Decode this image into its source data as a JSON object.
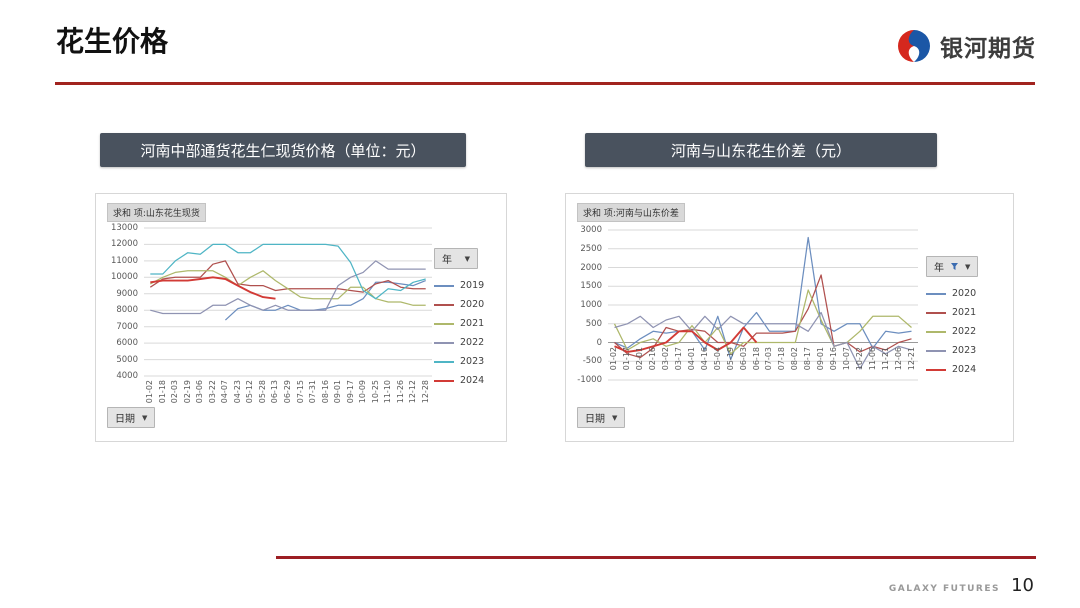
{
  "slide": {
    "title": "花生价格",
    "logo_text": "银河期货",
    "footer_brand": "GALAXY FUTURES",
    "page_number": "10",
    "accent_red": "#a1231e",
    "header_bg": "#49525e"
  },
  "icons": {
    "dropdown_arrow": "▼"
  },
  "panels": [
    {
      "header": "河南中部通货花生仁现货价格（单位：元）",
      "pivot_field": "求和 项:山东花生现货",
      "axis_filter_label": "日期",
      "legend_filter_label": "年",
      "legend_filtered": false
    },
    {
      "header": "河南与山东花生价差（元）",
      "pivot_field": "求和 项:河南与山东价差",
      "axis_filter_label": "日期",
      "legend_filter_label": "年",
      "legend_filtered": true
    }
  ],
  "chart_data": [
    {
      "type": "line",
      "title": "河南中部通货花生仁现货价格（单位：元）",
      "xlabel": "日期",
      "ylabel": "",
      "ylim": [
        4000,
        13000
      ],
      "yticks": [
        13000,
        12000,
        11000,
        10000,
        9000,
        8000,
        7000,
        6000,
        5000,
        4000
      ],
      "grid": true,
      "legend_position": "right",
      "categories": [
        "01-02",
        "01-18",
        "02-03",
        "02-19",
        "03-06",
        "03-22",
        "04-07",
        "04-23",
        "05-12",
        "05-28",
        "06-13",
        "06-29",
        "07-15",
        "07-31",
        "08-16",
        "09-01",
        "09-17",
        "10-09",
        "10-25",
        "11-10",
        "11-26",
        "12-12",
        "12-28"
      ],
      "series": [
        {
          "name": "2019",
          "color": "#6c8ebf",
          "values": [
            null,
            null,
            null,
            null,
            null,
            null,
            7400,
            8100,
            8300,
            8000,
            8000,
            8300,
            8000,
            8000,
            8100,
            8300,
            8300,
            8700,
            9700,
            9700,
            9600,
            9500,
            9800
          ]
        },
        {
          "name": "2020",
          "color": "#b0504e",
          "values": [
            9400,
            9900,
            10000,
            10000,
            10000,
            10800,
            11000,
            9600,
            9500,
            9500,
            9200,
            9300,
            9300,
            9300,
            9300,
            9300,
            9200,
            9100,
            9600,
            9800,
            9400,
            9300,
            9300
          ]
        },
        {
          "name": "2021",
          "color": "#aeb86b",
          "values": [
            9600,
            10000,
            10300,
            10400,
            10400,
            10400,
            10000,
            9500,
            10000,
            10400,
            9800,
            9300,
            8800,
            8700,
            8700,
            8700,
            9400,
            9400,
            8700,
            8500,
            8500,
            8300,
            8300
          ]
        },
        {
          "name": "2022",
          "color": "#8f93b2",
          "values": [
            8000,
            7800,
            7800,
            7800,
            7800,
            8300,
            8300,
            8700,
            8300,
            8000,
            8300,
            8000,
            8000,
            8000,
            8000,
            9500,
            10000,
            10300,
            11000,
            10500,
            10500,
            10500,
            10500
          ]
        },
        {
          "name": "2023",
          "color": "#4fb5c5",
          "values": [
            10200,
            10200,
            11000,
            11500,
            11400,
            12000,
            12000,
            11500,
            11500,
            12000,
            12000,
            12000,
            12000,
            12000,
            12000,
            11900,
            10900,
            9200,
            8700,
            9300,
            9200,
            9700,
            9900
          ]
        },
        {
          "name": "2024",
          "color": "#d23b36",
          "values": [
            9700,
            9800,
            9800,
            9800,
            9900,
            10000,
            9900,
            9500,
            9100,
            8800,
            8700,
            null,
            null,
            null,
            null,
            null,
            null,
            null,
            null,
            null,
            null,
            null,
            null
          ]
        }
      ]
    },
    {
      "type": "line",
      "title": "河南与山东花生价差（元）",
      "xlabel": "日期",
      "ylabel": "",
      "ylim": [
        -1000,
        3000
      ],
      "yticks": [
        3000,
        2500,
        2000,
        1500,
        1000,
        500,
        0,
        -500,
        -1000
      ],
      "grid": true,
      "legend_position": "right",
      "categories": [
        "01-02",
        "01-17",
        "02-01",
        "02-16",
        "03-02",
        "03-17",
        "04-01",
        "04-16",
        "05-04",
        "05-19",
        "06-03",
        "06-18",
        "07-03",
        "07-18",
        "08-02",
        "08-17",
        "09-01",
        "09-16",
        "10-07",
        "10-22",
        "11-06",
        "11-21",
        "12-06",
        "12-21"
      ],
      "series": [
        {
          "name": "2020",
          "color": "#6c8ebf",
          "values": [
            0,
            -150,
            100,
            300,
            250,
            300,
            300,
            -200,
            700,
            -450,
            400,
            800,
            300,
            300,
            300,
            2800,
            500,
            300,
            500,
            500,
            -150,
            300,
            250,
            300
          ]
        },
        {
          "name": "2021",
          "color": "#b0504e",
          "values": [
            0,
            -300,
            -400,
            -150,
            400,
            300,
            350,
            300,
            0,
            0,
            -100,
            250,
            250,
            250,
            300,
            900,
            1800,
            -100,
            0,
            -250,
            -100,
            -200,
            0,
            100
          ]
        },
        {
          "name": "2022",
          "color": "#aeb86b",
          "values": [
            500,
            -200,
            0,
            100,
            -100,
            0,
            450,
            0,
            400,
            -300,
            0,
            0,
            0,
            0,
            0,
            1400,
            600,
            -100,
            0,
            300,
            700,
            700,
            700,
            400
          ]
        },
        {
          "name": "2023",
          "color": "#8f93b2",
          "values": [
            400,
            500,
            700,
            400,
            600,
            700,
            300,
            700,
            350,
            700,
            500,
            500,
            500,
            500,
            500,
            300,
            800,
            -100,
            0,
            -700,
            -100,
            -300,
            -100,
            -200
          ]
        },
        {
          "name": "2024",
          "color": "#d23b36",
          "values": [
            -100,
            -250,
            -200,
            -100,
            0,
            300,
            300,
            0,
            -200,
            0,
            400,
            0,
            null,
            null,
            null,
            null,
            null,
            null,
            null,
            null,
            null,
            null,
            null,
            null
          ]
        }
      ]
    }
  ]
}
